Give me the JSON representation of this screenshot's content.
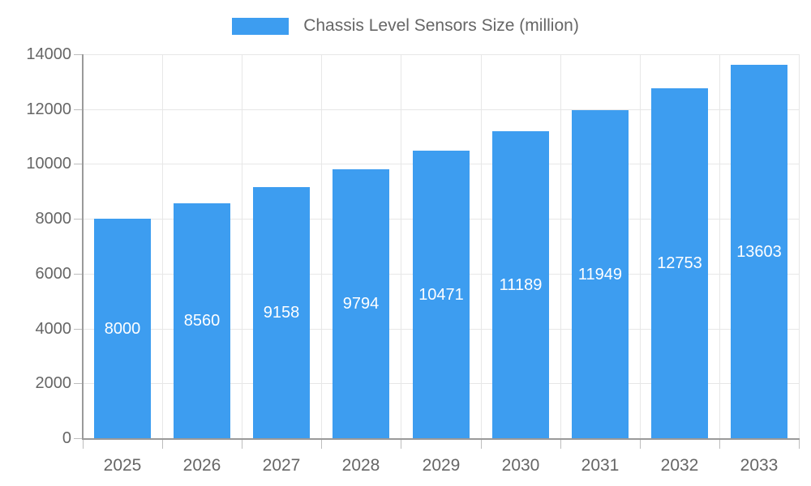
{
  "legend": {
    "label": "Chassis Level Sensors Size (million)"
  },
  "colors": {
    "bar": "#3D9DF0",
    "bar_value_text": "#FFFFFF",
    "axis_line": "#9A9A9A",
    "gridline": "#E7E7E7",
    "tick_mark": "#BDBDBD",
    "tick_label_text": "#666666",
    "legend_text": "#666666",
    "background": "#FFFFFF"
  },
  "chart_data": {
    "type": "bar",
    "title": "",
    "categories": [
      "2025",
      "2026",
      "2027",
      "2028",
      "2029",
      "2030",
      "2031",
      "2032",
      "2033"
    ],
    "series": [
      {
        "name": "Chassis Level Sensors Size (million)",
        "values": [
          8000,
          8560,
          9158,
          9794,
          10471,
          11189,
          11949,
          12753,
          13603
        ]
      }
    ],
    "data_labels_visible": true,
    "data_label_position": "inside-center",
    "xlabel": "",
    "ylabel": "",
    "ylim": [
      0,
      14000
    ],
    "yticks": [
      0,
      2000,
      4000,
      6000,
      8000,
      10000,
      12000,
      14000
    ],
    "grid": true,
    "legend_position": "top-center"
  }
}
